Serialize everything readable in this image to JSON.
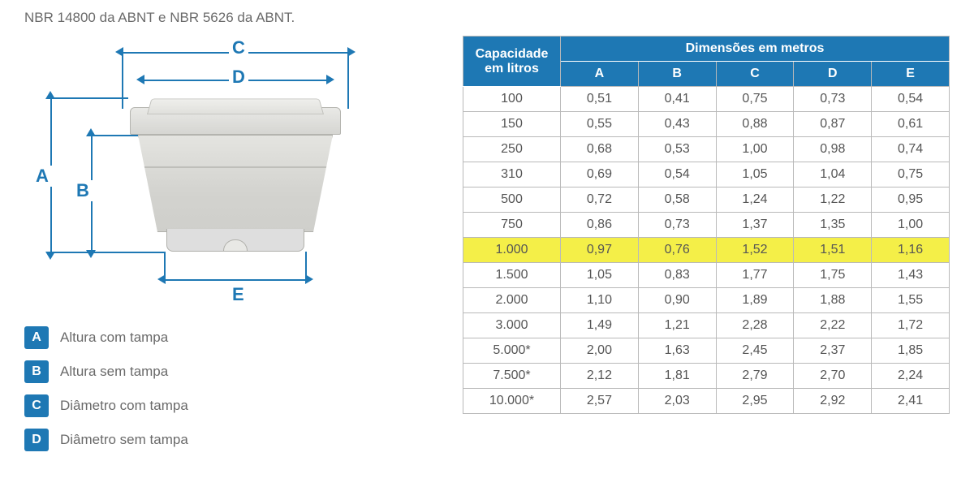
{
  "top_text": "NBR 14800 da ABNT e NBR 5626 da ABNT.",
  "diagram": {
    "labels": {
      "A": "A",
      "B": "B",
      "C": "C",
      "D": "D",
      "E": "E"
    },
    "arrow_color": "#1e78b4"
  },
  "legend": [
    {
      "key": "A",
      "text": "Altura com tampa"
    },
    {
      "key": "B",
      "text": "Altura sem tampa"
    },
    {
      "key": "C",
      "text": "Diâmetro com tampa"
    },
    {
      "key": "D",
      "text": "Diâmetro sem tampa"
    }
  ],
  "table": {
    "header_capacity": "Capacidade em litros",
    "header_dimensions": "Dimensões em metros",
    "columns": [
      "A",
      "B",
      "C",
      "D",
      "E"
    ],
    "rows": [
      {
        "cap": "100",
        "v": [
          "0,51",
          "0,41",
          "0,75",
          "0,73",
          "0,54"
        ],
        "hl": false
      },
      {
        "cap": "150",
        "v": [
          "0,55",
          "0,43",
          "0,88",
          "0,87",
          "0,61"
        ],
        "hl": false
      },
      {
        "cap": "250",
        "v": [
          "0,68",
          "0,53",
          "1,00",
          "0,98",
          "0,74"
        ],
        "hl": false
      },
      {
        "cap": "310",
        "v": [
          "0,69",
          "0,54",
          "1,05",
          "1,04",
          "0,75"
        ],
        "hl": false
      },
      {
        "cap": "500",
        "v": [
          "0,72",
          "0,58",
          "1,24",
          "1,22",
          "0,95"
        ],
        "hl": false
      },
      {
        "cap": "750",
        "v": [
          "0,86",
          "0,73",
          "1,37",
          "1,35",
          "1,00"
        ],
        "hl": false
      },
      {
        "cap": "1.000",
        "v": [
          "0,97",
          "0,76",
          "1,52",
          "1,51",
          "1,16"
        ],
        "hl": true
      },
      {
        "cap": "1.500",
        "v": [
          "1,05",
          "0,83",
          "1,77",
          "1,75",
          "1,43"
        ],
        "hl": false
      },
      {
        "cap": "2.000",
        "v": [
          "1,10",
          "0,90",
          "1,89",
          "1,88",
          "1,55"
        ],
        "hl": false
      },
      {
        "cap": "3.000",
        "v": [
          "1,49",
          "1,21",
          "2,28",
          "2,22",
          "1,72"
        ],
        "hl": false
      },
      {
        "cap": "5.000*",
        "v": [
          "2,00",
          "1,63",
          "2,45",
          "2,37",
          "1,85"
        ],
        "hl": false
      },
      {
        "cap": "7.500*",
        "v": [
          "2,12",
          "1,81",
          "2,79",
          "2,70",
          "2,24"
        ],
        "hl": false
      },
      {
        "cap": "10.000*",
        "v": [
          "2,57",
          "2,03",
          "2,95",
          "2,92",
          "2,41"
        ],
        "hl": false
      }
    ],
    "header_bg": "#1e78b4",
    "highlight_bg": "#f4ef48",
    "border_color": "#b9b9b9"
  }
}
